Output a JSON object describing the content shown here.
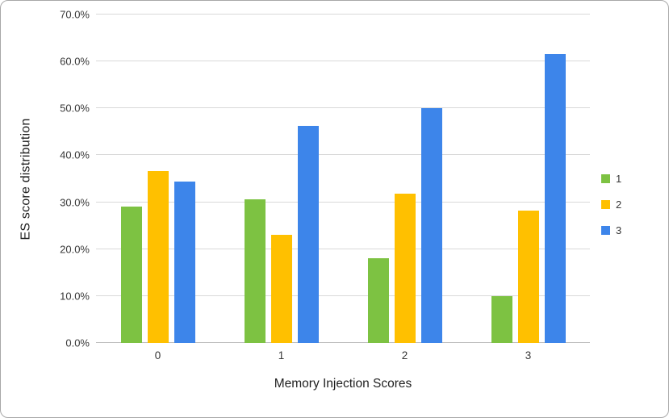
{
  "chart_data": {
    "type": "bar",
    "title": "",
    "categories": [
      "0",
      "1",
      "2",
      "3"
    ],
    "series": [
      {
        "name": "1",
        "color": "#7dc242",
        "values": [
          29.0,
          30.7,
          18.0,
          10.0
        ]
      },
      {
        "name": "2",
        "color": "#ffc000",
        "values": [
          36.7,
          23.0,
          31.8,
          28.2
        ]
      },
      {
        "name": "3",
        "color": "#3d85ea",
        "values": [
          34.4,
          46.2,
          50.0,
          61.6
        ]
      }
    ],
    "xlabel": "Memory Injection Scores",
    "ylabel": "ES score distribution",
    "ylim": [
      0,
      70
    ],
    "yticks": [
      0,
      10,
      20,
      30,
      40,
      50,
      60,
      70
    ],
    "ytick_labels": [
      "0.0%",
      "10.0%",
      "20.0%",
      "30.0%",
      "40.0%",
      "50.0%",
      "60.0%",
      "70.0%"
    ],
    "grid": true,
    "gridline_color": "#d9d9d9",
    "axis_line_color": "#bdbdbd",
    "legend_position": "right"
  }
}
